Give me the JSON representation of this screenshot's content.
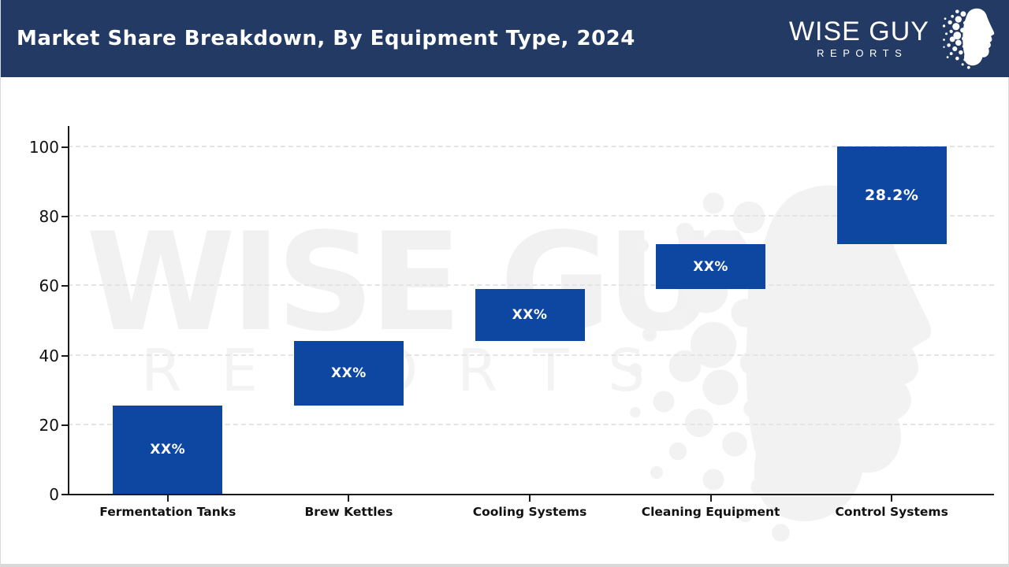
{
  "header": {
    "title": "Market Share Breakdown, By Equipment Type, 2024",
    "background_color": "#223A64",
    "logo": {
      "line1": "WISE GUY",
      "line2": "REPORTS"
    }
  },
  "watermark": {
    "line1": "WISE GUY",
    "line2": "REPORTS"
  },
  "chart_data": {
    "type": "bar",
    "subtype": "waterfall-stacked",
    "title": "Market Share Breakdown, By Equipment Type, 2024",
    "categories": [
      "Fermentation Tanks",
      "Brew Kettles",
      "Cooling Systems",
      "Cleaning Equipment",
      "Control Systems"
    ],
    "segments": [
      {
        "category": "Fermentation Tanks",
        "start": 0,
        "end": 25.3,
        "value_label": "XX%"
      },
      {
        "category": "Brew Kettles",
        "start": 25.3,
        "end": 44.1,
        "value_label": "XX%"
      },
      {
        "category": "Cooling Systems",
        "start": 44.1,
        "end": 59.0,
        "value_label": "XX%"
      },
      {
        "category": "Cleaning Equipment",
        "start": 59.0,
        "end": 71.8,
        "value_label": "XX%"
      },
      {
        "category": "Control Systems",
        "start": 71.8,
        "end": 100,
        "value_label": "28.2%"
      }
    ],
    "yticks": [
      0,
      20,
      40,
      60,
      80,
      100
    ],
    "ylim": [
      0,
      105.8
    ],
    "xlabel": "",
    "ylabel": "",
    "grid": true,
    "gridline_style": "dashed",
    "legend": false,
    "bar_color": "#0d47a1",
    "value_label_color": "#ffffff",
    "axis_color": "#1a1a1a"
  }
}
